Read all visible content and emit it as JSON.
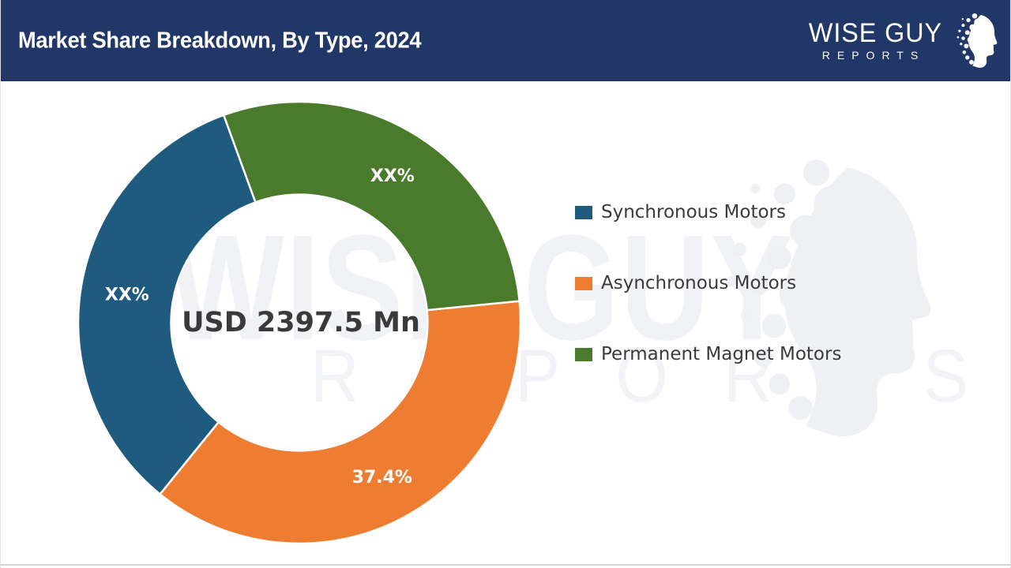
{
  "header": {
    "title": "Market Share Breakdown, By Type, 2024",
    "logo": {
      "line1": "WISE GUY",
      "line2": "REPORTS"
    }
  },
  "watermark": {
    "line1": "WISE GUY",
    "line2": "REPORTS"
  },
  "chart_data": {
    "type": "pie",
    "subtype": "donut",
    "title": "Market Share Breakdown, By Type, 2024",
    "center_label": "USD 2397.5 Mn",
    "categories": [
      "Synchronous Motors",
      "Asynchronous Motors",
      "Permanent Magnet Motors"
    ],
    "values": [
      33.6,
      37.4,
      29.0
    ],
    "slice_labels": [
      "XX%",
      "37.4%",
      "XX%"
    ],
    "colors": [
      "#1f5b7e",
      "#ee7d32",
      "#4a7a2b"
    ],
    "start_angle": 110,
    "counterclockwise": true,
    "donut_hole_ratio": 0.58,
    "legend_position": "right",
    "label_color": "#ffffff",
    "center_label_color": "#3a3a3a"
  }
}
